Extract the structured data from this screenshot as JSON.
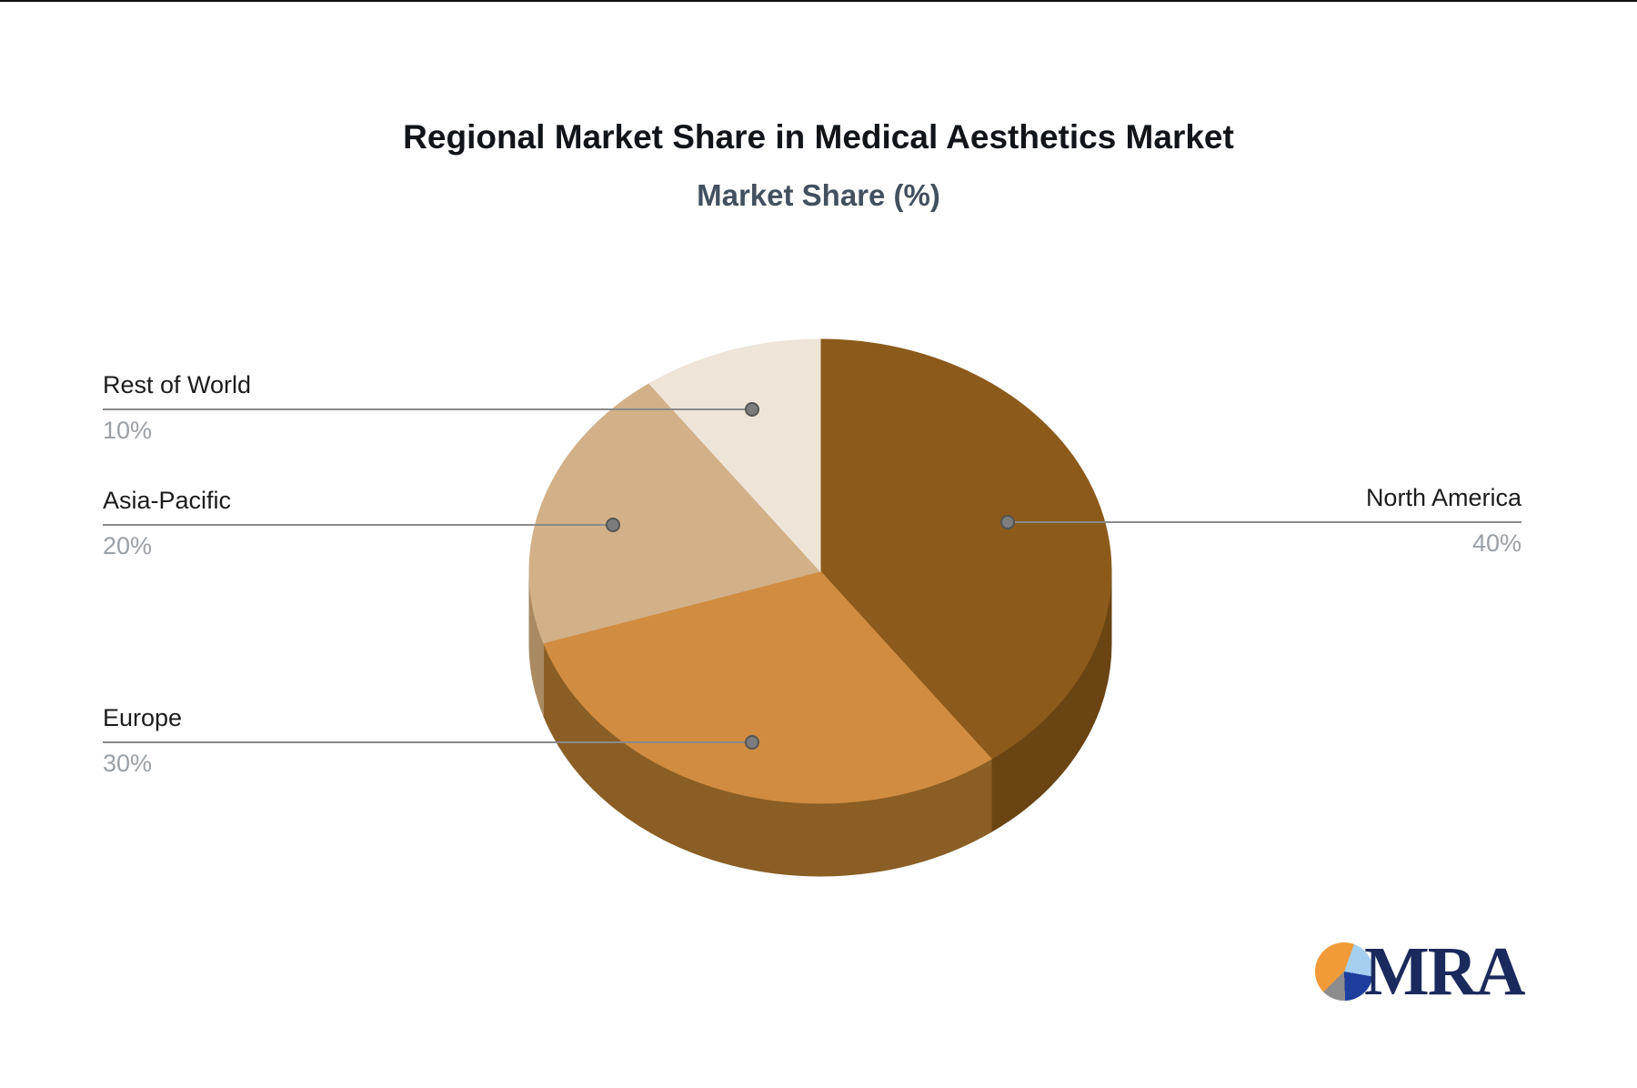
{
  "title": "Regional Market Share in Medical Aesthetics Market",
  "subtitle": "Market Share (%)",
  "background_color": "#ffffff",
  "leader_line_color": "#8a8a8a",
  "label_text_color": "#1c1c1c",
  "percent_text_color": "#9aa0a6",
  "subtitle_color": "#42505f",
  "logo": {
    "text": "MRA",
    "icon": "pie-chart-logo-icon",
    "navy": "#1b2a5c",
    "orange": "#f09a38",
    "light_blue": "#a5cff0",
    "dark_blue": "#1e3e9e",
    "gray": "#8c8c8c"
  },
  "chart_data": {
    "type": "pie",
    "style": "3d",
    "title": "Regional Market Share in Medical Aesthetics Market",
    "subtitle": "Market Share (%)",
    "unit": "%",
    "start_angle_deg": 0,
    "direction": "clockwise",
    "legend_position": "callout-labels",
    "slices": [
      {
        "label": "North America",
        "value": 40,
        "display": "40%",
        "color": "#8c5a1b",
        "side_color": "#6b4413",
        "label_side": "right"
      },
      {
        "label": "Europe",
        "value": 30,
        "display": "30%",
        "color": "#d08c41",
        "side_color": "#8a5e24",
        "label_side": "left"
      },
      {
        "label": "Asia-Pacific",
        "value": 20,
        "display": "20%",
        "color": "#d2b088",
        "side_color": "#a98a62",
        "label_side": "left"
      },
      {
        "label": "Rest of World",
        "value": 10,
        "display": "10%",
        "color": "#eee4d8",
        "side_color": "#c9bba8",
        "label_side": "left"
      }
    ]
  }
}
